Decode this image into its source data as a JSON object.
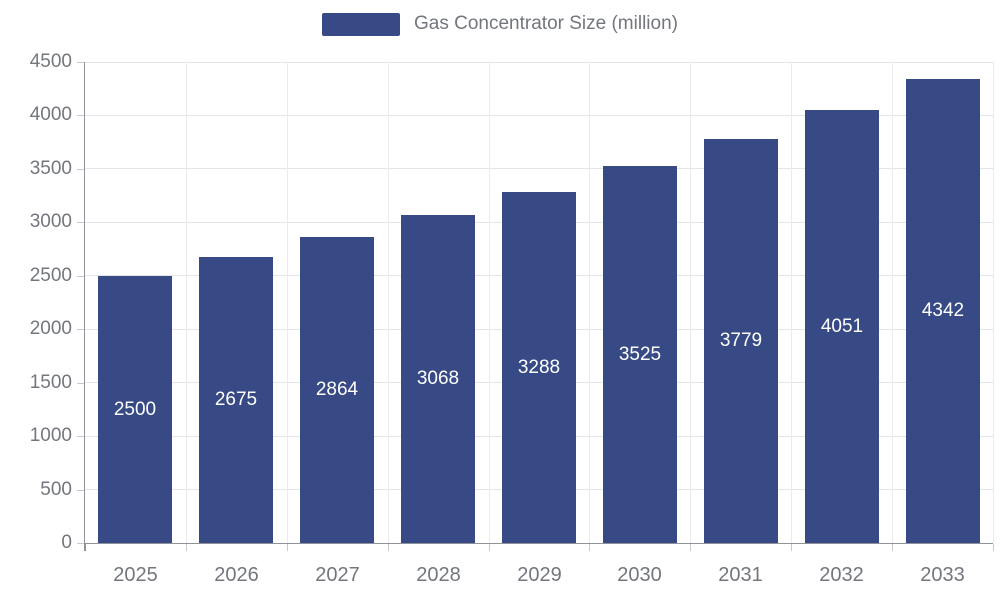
{
  "legend": {
    "label": "Gas Concentrator Size (million)"
  },
  "chart_data": {
    "type": "bar",
    "title": "Gas Concentrator Size (million)",
    "categories": [
      "2025",
      "2026",
      "2027",
      "2028",
      "2029",
      "2030",
      "2031",
      "2032",
      "2033"
    ],
    "values": [
      2500,
      2675,
      2864,
      3068,
      3288,
      3525,
      3779,
      4051,
      4342
    ],
    "series": [
      {
        "name": "Gas Concentrator Size (million)",
        "values": [
          2500,
          2675,
          2864,
          3068,
          3288,
          3525,
          3779,
          4051,
          4342
        ]
      }
    ],
    "xlabel": "",
    "ylabel": "",
    "ylim": [
      0,
      4500
    ],
    "yticks": [
      0,
      500,
      1000,
      1500,
      2000,
      2500,
      3000,
      3500,
      4000,
      4500
    ],
    "grid": true,
    "value_labels_position": "inside-center",
    "legend_position": "top-center",
    "colors": {
      "bar": "#374a85",
      "bar_label": "#ffffff",
      "axis_text": "#73767d",
      "grid_line": "#e4e5e9",
      "grid_line_vertical": "#eaebee",
      "axis_line": "#8f9298",
      "tick_line": "#c6c8cd"
    }
  }
}
